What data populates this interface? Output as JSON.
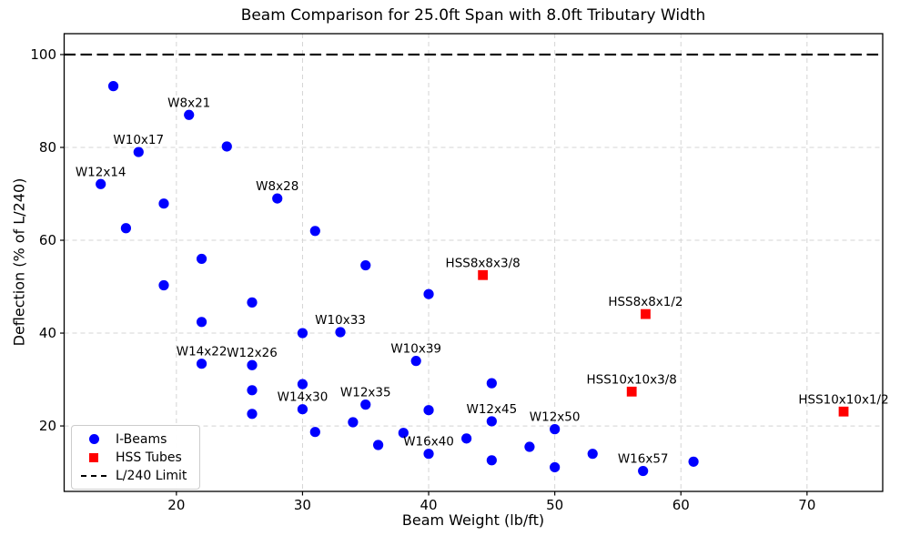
{
  "chart_data": {
    "type": "scatter",
    "title": "Beam Comparison for 25.0ft Span with 8.0ft Tributary Width",
    "xlabel": "Beam Weight (lb/ft)",
    "ylabel": "Deflection (% of L/240)",
    "xlim": [
      11.1,
      76.0
    ],
    "ylim": [
      5.9,
      104.5
    ],
    "xticks": [
      20,
      30,
      40,
      50,
      60,
      70
    ],
    "yticks": [
      20,
      40,
      60,
      80,
      100
    ],
    "grid": true,
    "legend_position": "lower-left",
    "colors": {
      "grid": "#d4d4d4",
      "spine": "#000000",
      "text": "#000000",
      "legend_border": "#cccccc"
    },
    "limit_line": {
      "y": 100,
      "label": "L/240 Limit",
      "color": "#000000",
      "style": "dashed"
    },
    "series": [
      {
        "name": "I-Beams",
        "marker": "circle",
        "color": "#0000ff",
        "points": [
          {
            "x": 15,
            "y": 93.2
          },
          {
            "x": 21,
            "y": 87.0,
            "label": "W8x21"
          },
          {
            "x": 24,
            "y": 80.2
          },
          {
            "x": 17,
            "y": 79.0,
            "label": "W10x17"
          },
          {
            "x": 14,
            "y": 72.1,
            "label": "W12x14"
          },
          {
            "x": 28,
            "y": 69.0,
            "label": "W8x28"
          },
          {
            "x": 19,
            "y": 67.9
          },
          {
            "x": 16,
            "y": 62.6
          },
          {
            "x": 31,
            "y": 62.0
          },
          {
            "x": 22,
            "y": 56.0
          },
          {
            "x": 35,
            "y": 54.6
          },
          {
            "x": 19,
            "y": 50.3
          },
          {
            "x": 40,
            "y": 48.4
          },
          {
            "x": 26,
            "y": 46.6
          },
          {
            "x": 22,
            "y": 42.4
          },
          {
            "x": 33,
            "y": 40.2,
            "label": "W10x33"
          },
          {
            "x": 30,
            "y": 40.0
          },
          {
            "x": 39,
            "y": 34.0,
            "label": "W10x39"
          },
          {
            "x": 22,
            "y": 33.4,
            "label": "W14x22"
          },
          {
            "x": 26,
            "y": 33.1,
            "label": "W12x26"
          },
          {
            "x": 45,
            "y": 29.2
          },
          {
            "x": 30,
            "y": 29.0
          },
          {
            "x": 26,
            "y": 27.7
          },
          {
            "x": 35,
            "y": 24.6,
            "label": "W12x35"
          },
          {
            "x": 30,
            "y": 23.6,
            "label": "W14x30"
          },
          {
            "x": 40,
            "y": 23.4
          },
          {
            "x": 26,
            "y": 22.6
          },
          {
            "x": 45,
            "y": 21.0,
            "label": "W12x45"
          },
          {
            "x": 34,
            "y": 20.8
          },
          {
            "x": 50,
            "y": 19.3,
            "label": "W12x50"
          },
          {
            "x": 31,
            "y": 18.7
          },
          {
            "x": 38,
            "y": 18.5
          },
          {
            "x": 43,
            "y": 17.3
          },
          {
            "x": 36,
            "y": 15.9
          },
          {
            "x": 48,
            "y": 15.5
          },
          {
            "x": 53,
            "y": 14.0
          },
          {
            "x": 40,
            "y": 14.0,
            "label": "W16x40"
          },
          {
            "x": 45,
            "y": 12.6
          },
          {
            "x": 61,
            "y": 12.3
          },
          {
            "x": 50,
            "y": 11.1
          },
          {
            "x": 57,
            "y": 10.3,
            "label": "W16x57"
          }
        ]
      },
      {
        "name": "HSS Tubes",
        "marker": "square",
        "color": "#ff0000",
        "points": [
          {
            "x": 44.3,
            "y": 52.5,
            "label": "HSS8x8x3/8"
          },
          {
            "x": 57.2,
            "y": 44.1,
            "label": "HSS8x8x1/2"
          },
          {
            "x": 56.1,
            "y": 27.4,
            "label": "HSS10x10x3/8"
          },
          {
            "x": 72.9,
            "y": 23.1,
            "label": "HSS10x10x1/2"
          }
        ]
      }
    ]
  }
}
